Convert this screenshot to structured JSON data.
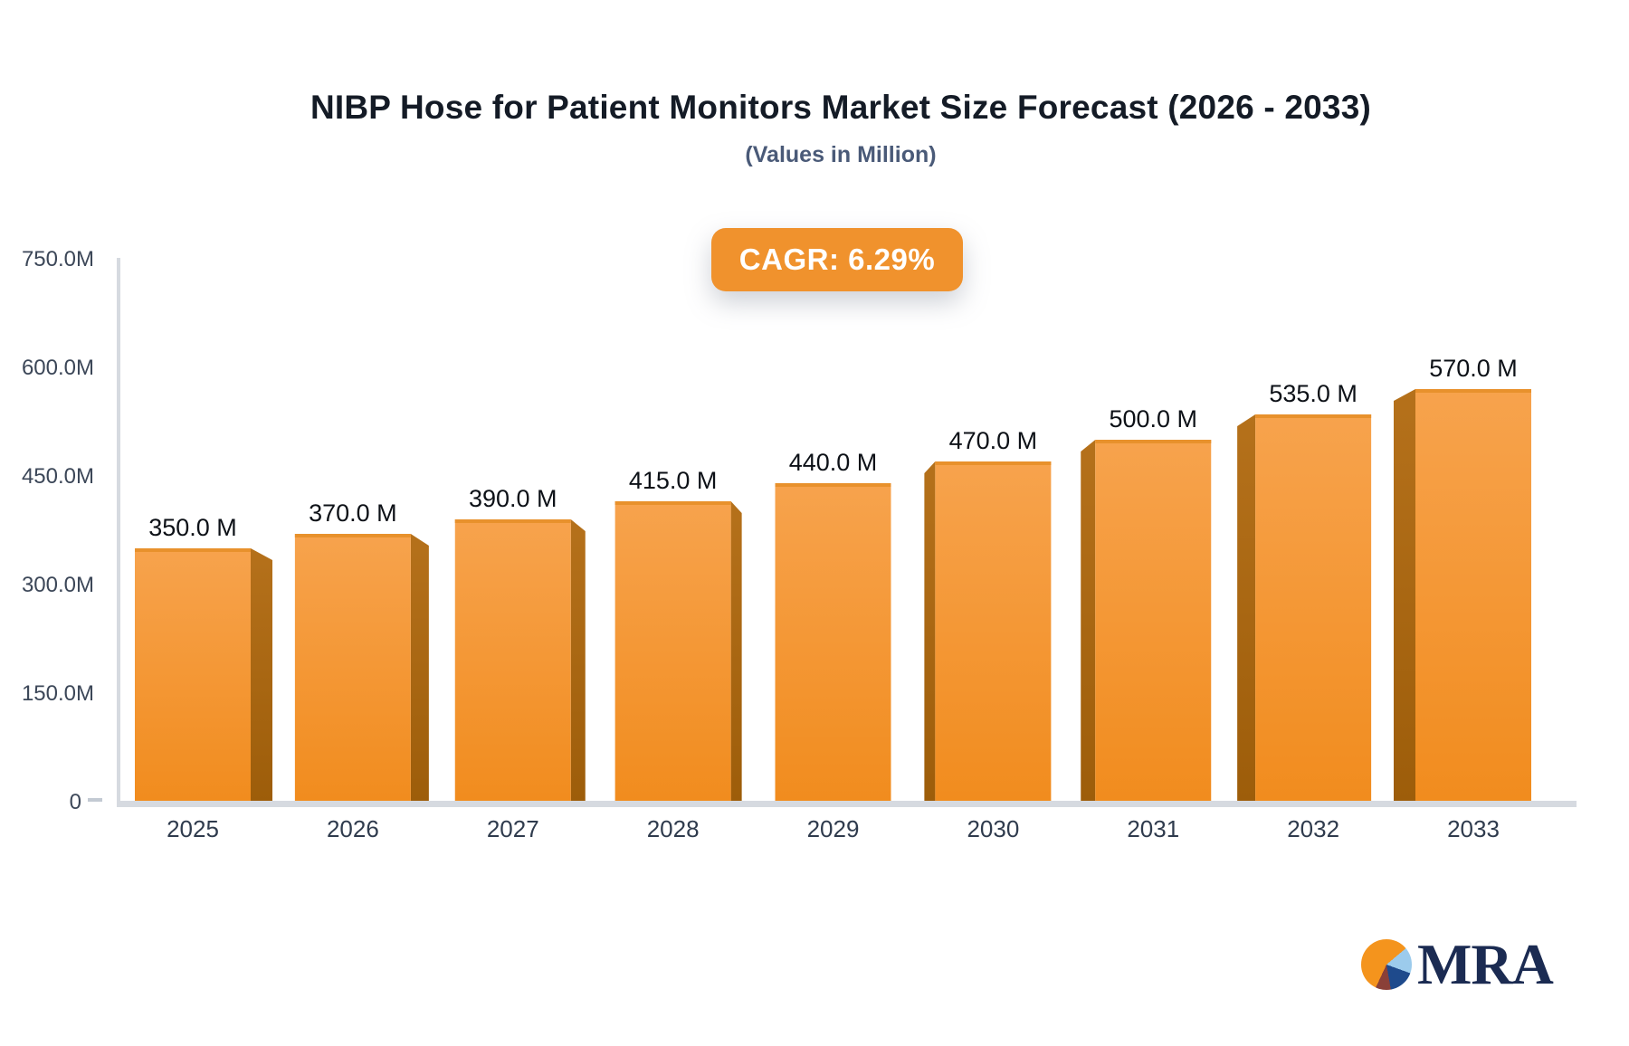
{
  "header": {
    "title": "NIBP Hose for Patient Monitors Market Size Forecast (2026 - 2033)",
    "subtitle": "(Values in Million)"
  },
  "cagr_badge": {
    "label": "CAGR: 6.29%"
  },
  "chart_data": {
    "type": "bar",
    "title": "NIBP Hose for Patient Monitors Market Size Forecast (2026 - 2033)",
    "subtitle": "(Values in Million)",
    "unit": "Million",
    "cagr_percent": 6.29,
    "categories": [
      "2025",
      "2026",
      "2027",
      "2028",
      "2029",
      "2030",
      "2031",
      "2032",
      "2033"
    ],
    "values": [
      350,
      370,
      390,
      415,
      440,
      470,
      500,
      535,
      570
    ],
    "value_labels": [
      "350.0 M",
      "370.0 M",
      "390.0 M",
      "415.0 M",
      "440.0 M",
      "470.0 M",
      "500.0 M",
      "535.0 M",
      "570.0 M"
    ],
    "ylim": [
      0,
      750
    ],
    "y_ticks": [
      {
        "value": 0,
        "label": "0"
      },
      {
        "value": 150,
        "label": "150.0M"
      },
      {
        "value": 300,
        "label": "300.0M"
      },
      {
        "value": 450,
        "label": "450.0M"
      },
      {
        "value": 600,
        "label": "600.0M"
      },
      {
        "value": 750,
        "label": "750.0M"
      }
    ],
    "grid": false,
    "legend": false,
    "bar_style": "3d-perspective"
  },
  "logo": {
    "text": "MRA"
  },
  "colors": {
    "bar_face_top": "#F7A34D",
    "bar_face_bottom": "#F18C1E",
    "bar_top_edge": "#E8912C",
    "bar_side_top": "#B5711B",
    "bar_side_bottom": "#9D5D0A",
    "badge_bg": "#F0922D",
    "badge_text": "#FFFFFF",
    "axis_line": "#D6DAE0",
    "tick_dash": "#C3CAD3",
    "y_tick_text": "#3C4758",
    "x_tick_text": "#2F3B4D",
    "value_label_text": "#0D1117",
    "title_text": "#141B26",
    "subtitle_text": "#4A5A78",
    "logo_text": "#1B2B52",
    "logo_pie_orange": "#F4941D",
    "logo_pie_lightblue": "#9CCBEC",
    "logo_pie_navy": "#1E4A8C",
    "logo_pie_brown": "#8A4038"
  }
}
